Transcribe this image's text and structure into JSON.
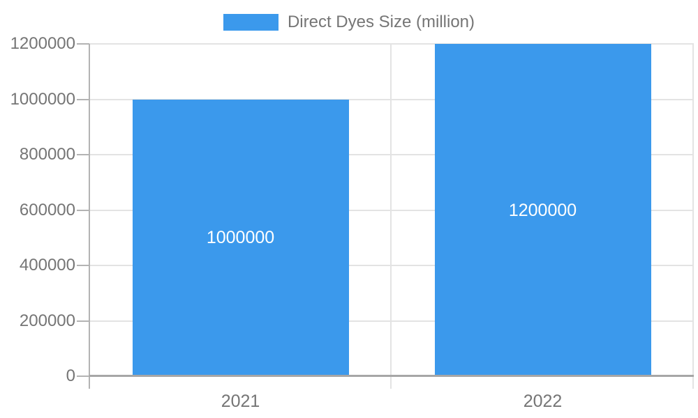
{
  "chart_data": {
    "type": "bar",
    "title": "",
    "legend": "Direct Dyes Size (million)",
    "legend_position": "top",
    "categories": [
      "2021",
      "2022"
    ],
    "values": [
      1000000,
      1200000
    ],
    "bar_labels": [
      "1000000",
      "1200000"
    ],
    "ylim": [
      0,
      1200000
    ],
    "yticks": [
      0,
      200000,
      400000,
      600000,
      800000,
      1000000,
      1200000
    ],
    "ytick_labels": [
      "0",
      "200000",
      "400000",
      "600000",
      "800000",
      "1000000",
      "1200000"
    ],
    "grid": true,
    "xlabel": "",
    "ylabel": ""
  },
  "colors": {
    "bar": "#3B99EC",
    "bar_label": "#FFFFFF",
    "axis_text": "#757575",
    "grid_line": "#E3E3E3",
    "axis_line": "#B3B3B3",
    "baseline": "#A6A6A6"
  }
}
